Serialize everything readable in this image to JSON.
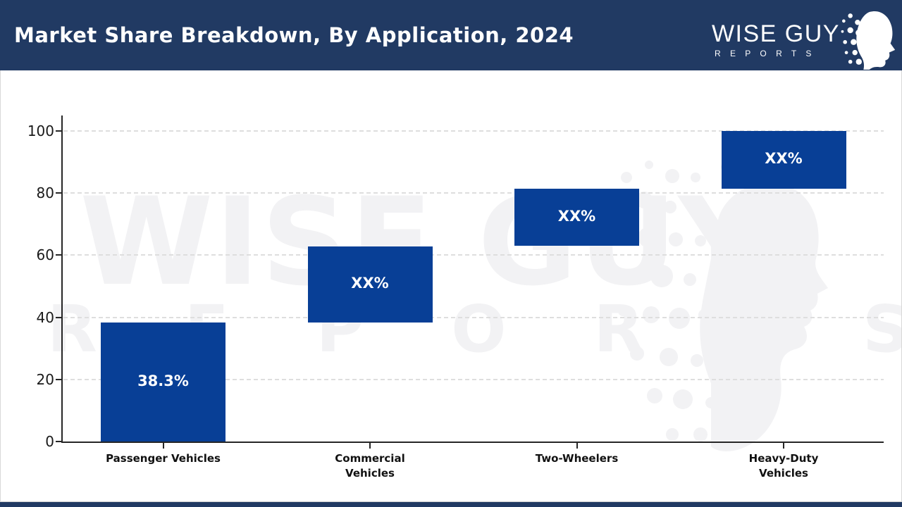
{
  "header": {
    "title": "Market Share Breakdown, By Application, 2024",
    "logo": {
      "brand_line1": "WISE GUY",
      "brand_line2": "R E P O R T S"
    }
  },
  "watermark": {
    "line1": "WISE GUY",
    "line2": "R E P O R T S"
  },
  "chart_data": {
    "type": "bar",
    "variant": "floating-waterfall",
    "title": "Market Share Breakdown, By Application, 2024",
    "categories": [
      "Passenger Vehicles",
      "Commercial Vehicles",
      "Two-Wheelers",
      "Heavy-Duty Vehicles"
    ],
    "category_lines": [
      [
        "Passenger Vehicles"
      ],
      [
        "Commercial",
        "Vehicles"
      ],
      [
        "Two-Wheelers"
      ],
      [
        "Heavy-Duty",
        "Vehicles"
      ]
    ],
    "series": [
      {
        "name": "Market share (%)",
        "segments": [
          {
            "category": "Passenger Vehicles",
            "start": 0,
            "end": 38.3,
            "label": "38.3%"
          },
          {
            "category": "Commercial Vehicles",
            "start": 38.3,
            "end": 62.8,
            "label": "XX%"
          },
          {
            "category": "Two-Wheelers",
            "start": 63.0,
            "end": 81.3,
            "label": "XX%"
          },
          {
            "category": "Heavy-Duty Vehicles",
            "start": 81.3,
            "end": 100.0,
            "label": "XX%"
          }
        ]
      }
    ],
    "ylim": [
      0,
      100
    ],
    "yticks": [
      0,
      20,
      40,
      60,
      80,
      100
    ],
    "xlabel": "",
    "ylabel": "",
    "legend": "none",
    "grid": {
      "axis": "y",
      "style": "dashed",
      "color": "#dedede"
    },
    "colors": {
      "bar": "#083f96",
      "bar_label": "#ffffff",
      "header_bg": "#213a63",
      "axis": "#262626",
      "tick_label": "#1a1a1a",
      "watermark": "#f2f2f4"
    }
  }
}
